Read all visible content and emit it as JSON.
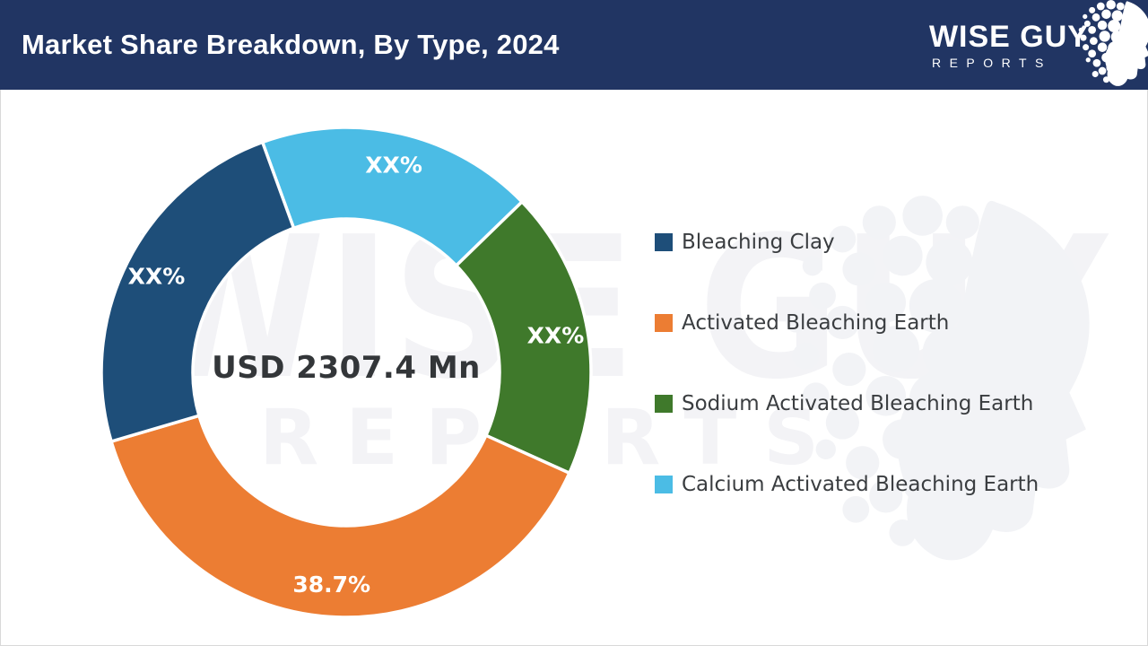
{
  "header": {
    "title": "Market Share Breakdown, By Type, 2024",
    "logo": {
      "line1": "WISE GUY",
      "line2": "REPORTS"
    }
  },
  "watermark": {
    "line1": "WISE GUY",
    "line2": "REPORTS"
  },
  "chart_data": {
    "type": "pie",
    "subtype": "donut",
    "title": "Market Share Breakdown, By Type, 2024",
    "center_label": "USD 2307.4 Mn",
    "start_angle_deg": -20,
    "legend_position": "right",
    "segments": [
      {
        "name": "Calcium Activated Bleaching Earth",
        "value_pct": 18.3,
        "label": "XX%",
        "color": "#4BBCE5"
      },
      {
        "name": "Sodium Activated Bleaching Earth",
        "value_pct": 19.0,
        "label": "XX%",
        "color": "#3F792B"
      },
      {
        "name": "Activated Bleaching Earth",
        "value_pct": 38.7,
        "label": "38.7%",
        "color": "#EC7D33"
      },
      {
        "name": "Bleaching Clay",
        "value_pct": 24.0,
        "label": "XX%",
        "color": "#1E4E79"
      }
    ]
  }
}
